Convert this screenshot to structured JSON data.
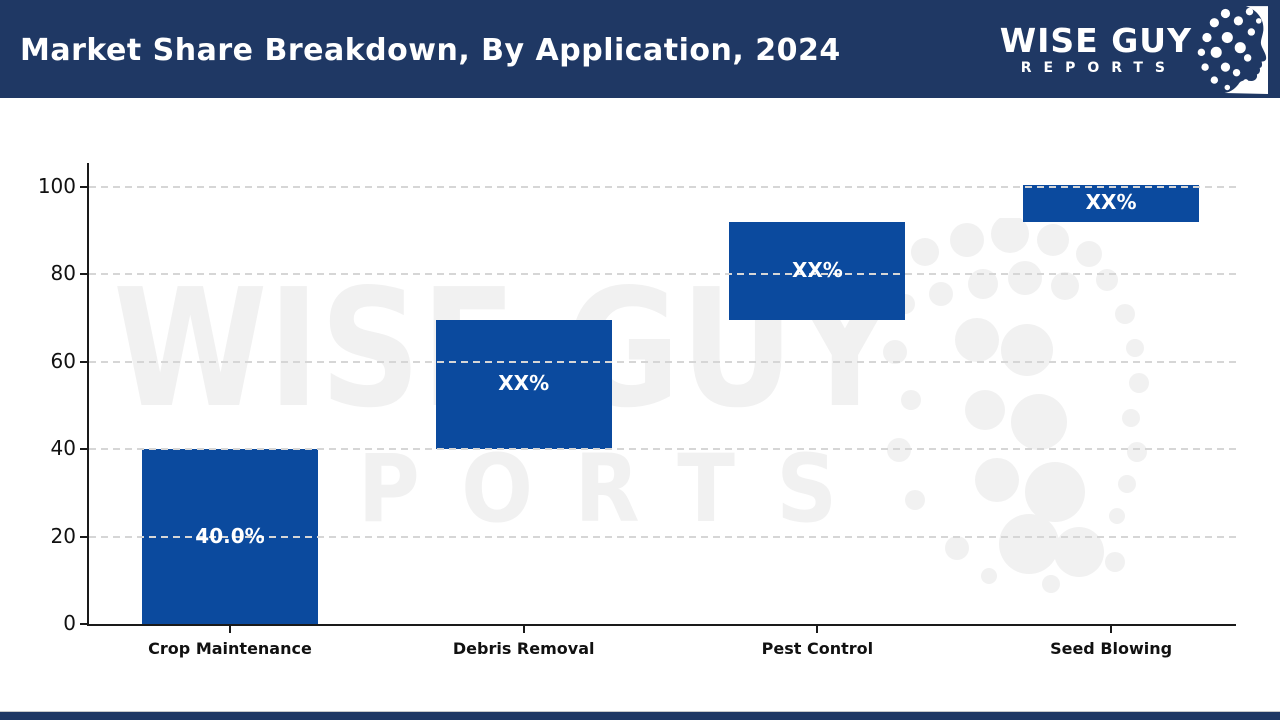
{
  "header": {
    "title": "Market Share Breakdown, By Application, 2024",
    "logo": {
      "line1": "WISE GUY",
      "line2": "REPORTS"
    }
  },
  "watermark": {
    "line1": "WISE GUY",
    "line2": "REPORTS"
  },
  "chart_data": {
    "type": "bar",
    "variant": "waterfall",
    "title": "Market Share Breakdown, By Application, 2024",
    "categories": [
      "Crop Maintenance",
      "Debris Removal",
      "Pest Control",
      "Seed Blowing"
    ],
    "segments": [
      {
        "category": "Crop Maintenance",
        "start": 0,
        "end": 40,
        "label": "40.0%"
      },
      {
        "category": "Debris Removal",
        "start": 40,
        "end": 69.5,
        "label": "XX%"
      },
      {
        "category": "Pest Control",
        "start": 69.5,
        "end": 92,
        "label": "XX%"
      },
      {
        "category": "Seed Blowing",
        "start": 92,
        "end": 100.4,
        "label": "XX%"
      }
    ],
    "xlabel": "",
    "ylabel": "",
    "y_ticks": [
      0,
      20,
      40,
      60,
      80,
      100
    ],
    "ylim": [
      0,
      105
    ],
    "grid": "dashed-horizontal",
    "legend": "none",
    "colors": {
      "bar": "#0b4a9e",
      "grid": "#d6d6d6",
      "axis": "#1a1a1a",
      "header_bg": "#1f3864",
      "value_label": "#ffffff",
      "watermark": "#f1f1f1"
    }
  }
}
